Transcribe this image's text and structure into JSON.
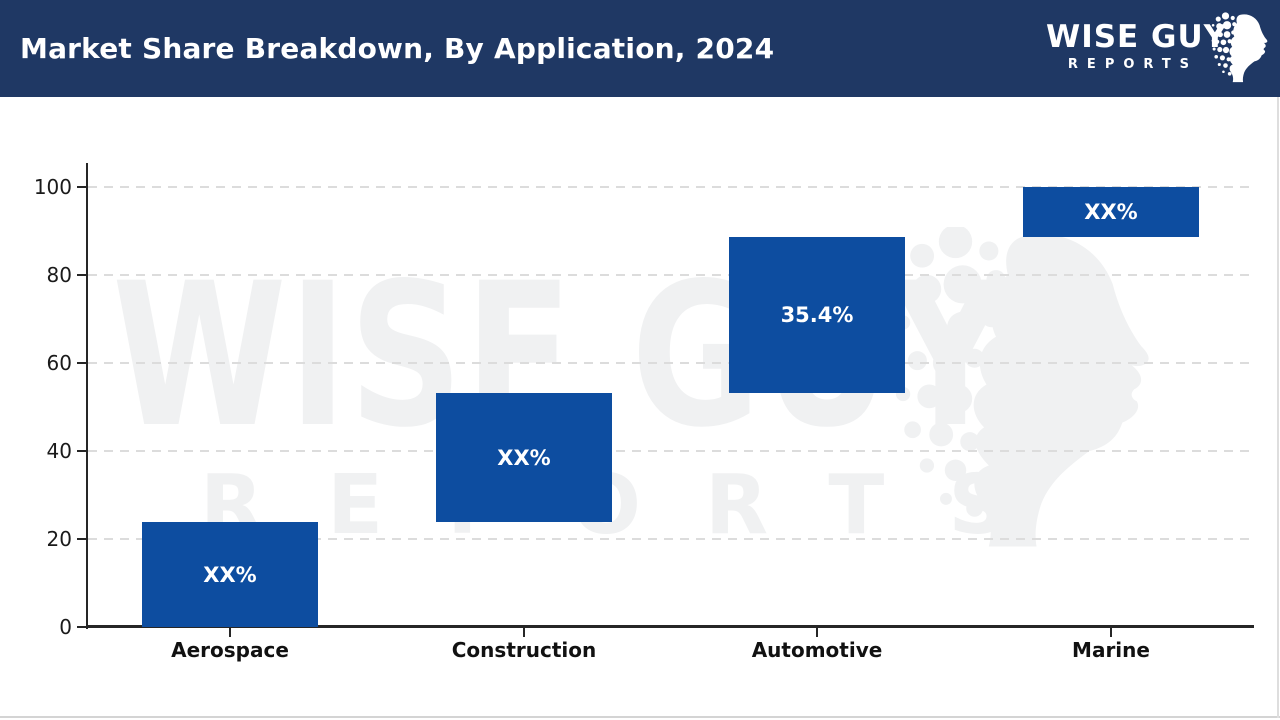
{
  "header": {
    "title": "Market Share Breakdown, By Application, 2024",
    "bg_color": "#1f3864"
  },
  "logo": {
    "line1": "WISE GUY",
    "line2": "REPORTS"
  },
  "watermark": {
    "line1": "WISE GUY",
    "line2": "REPORTS"
  },
  "chart_data": {
    "type": "bar",
    "variant": "floating-waterfall",
    "title": "Market Share Breakdown, By Application, 2024",
    "categories": [
      "Aerospace",
      "Construction",
      "Automotive",
      "Marine"
    ],
    "segments": [
      {
        "category": "Aerospace",
        "start": 0,
        "end": 23.8,
        "value": 23.8,
        "label": "XX%"
      },
      {
        "category": "Construction",
        "start": 23.8,
        "end": 53.2,
        "value": 29.4,
        "label": "XX%"
      },
      {
        "category": "Automotive",
        "start": 53.2,
        "end": 88.6,
        "value": 35.4,
        "label": "35.4%"
      },
      {
        "category": "Marine",
        "start": 88.6,
        "end": 100.0,
        "value": 11.4,
        "label": "XX%"
      }
    ],
    "ylabel": "",
    "xlabel": "",
    "ylim": [
      0,
      100
    ],
    "yticks": [
      0,
      20,
      40,
      60,
      80,
      100
    ],
    "grid": "dashed-horizontal",
    "legend": "none",
    "bar_color": "#0d4da0",
    "grid_color": "#dcdcdc",
    "axis_color": "#262626"
  }
}
